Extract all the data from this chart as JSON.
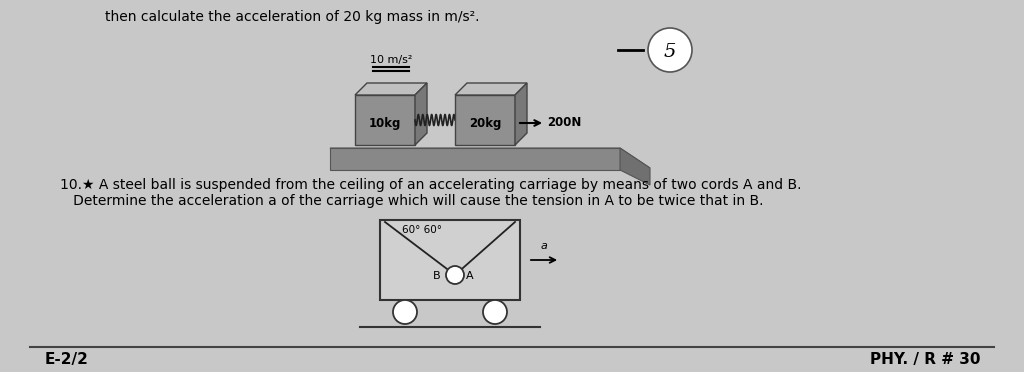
{
  "bg_color": "#c8c8c8",
  "text_color": "#000000",
  "title_text": "then calculate the acceleration of 20 kg mass in m/s².",
  "problem10_line1": "10.★ A steel ball is suspended from the ceiling of an accelerating carriage by means of two cords A and B.",
  "problem10_line2": "   Determine the acceleration a of the carriage which will cause the tension in A to be twice that in B.",
  "footer_left": "E-2/2",
  "footer_right": "PHY. / R # 30",
  "label_10ms2": "10 m/s²",
  "label_10kg": "10kg",
  "label_20kg": "20kg",
  "label_200N": "200N",
  "label_60_60": "60° 60°",
  "label_B": "B",
  "label_A": "A",
  "label_a": "a",
  "circle_number": "5",
  "platform_color": "#8a8a8a",
  "platform_top_color": "#b0b0b0",
  "platform_side_color": "#707070",
  "block_face_color": "#909090",
  "block_top_color": "#b8b8b8",
  "block_side_color": "#787878",
  "cart_color": "#c0c0c0"
}
